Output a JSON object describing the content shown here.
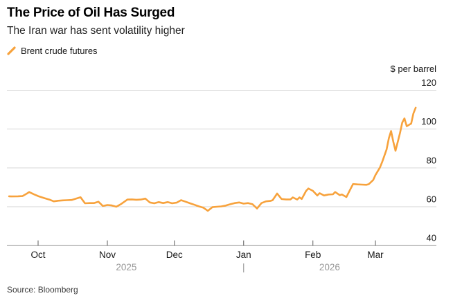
{
  "header": {
    "title": "The Price of Oil Has Surged",
    "subtitle": "The Iran war has sent volatility higher"
  },
  "legend": {
    "label": "Brent crude futures",
    "marker_icon": "orange-diagonal-line-icon"
  },
  "footer": {
    "source": "Source: Bloomberg"
  },
  "chart_data": {
    "type": "line",
    "title": "The Price of Oil Has Surged",
    "subtitle": "The Iran war has sent volatility higher",
    "series_name": "Brent crude futures",
    "unit_label": "$ per barrel",
    "line_color": "#F7A23C",
    "grid": "horizontal",
    "legend_position": "top-left",
    "ylim": [
      40,
      120
    ],
    "yticks": [
      40,
      60,
      80,
      100,
      120
    ],
    "x_axis": {
      "ticks": [
        {
          "label": "Oct",
          "date": "2025-10-01"
        },
        {
          "label": "Nov",
          "date": "2025-11-01"
        },
        {
          "label": "Dec",
          "date": "2025-12-01"
        },
        {
          "label": "Jan",
          "date": "2026-01-01"
        },
        {
          "label": "Feb",
          "date": "2026-02-01"
        },
        {
          "label": "Mar",
          "date": "2026-03-01"
        }
      ],
      "years": [
        {
          "label": "2025",
          "start": "2025-09-18",
          "end": "2026-01-01"
        },
        {
          "label": "2026",
          "start": "2026-01-01",
          "end": "2026-03-19"
        }
      ]
    },
    "x": [
      "2025-09-18",
      "2025-09-19",
      "2025-09-22",
      "2025-09-24",
      "2025-09-26",
      "2025-09-27",
      "2025-09-29",
      "2025-09-30",
      "2025-10-01",
      "2025-10-04",
      "2025-10-06",
      "2025-10-08",
      "2025-10-10",
      "2025-10-12",
      "2025-10-14",
      "2025-10-16",
      "2025-10-18",
      "2025-10-20",
      "2025-10-22",
      "2025-10-24",
      "2025-10-26",
      "2025-10-28",
      "2025-10-30",
      "2025-11-01",
      "2025-11-03",
      "2025-11-05",
      "2025-11-07",
      "2025-11-10",
      "2025-11-12",
      "2025-11-14",
      "2025-11-16",
      "2025-11-18",
      "2025-11-20",
      "2025-11-22",
      "2025-11-24",
      "2025-11-26",
      "2025-11-28",
      "2025-11-30",
      "2025-12-02",
      "2025-12-04",
      "2025-12-06",
      "2025-12-08",
      "2025-12-10",
      "2025-12-12",
      "2025-12-14",
      "2025-12-16",
      "2025-12-18",
      "2025-12-20",
      "2025-12-22",
      "2025-12-24",
      "2025-12-26",
      "2025-12-28",
      "2025-12-30",
      "2026-01-01",
      "2026-01-03",
      "2026-01-05",
      "2026-01-07",
      "2026-01-09",
      "2026-01-11",
      "2026-01-13",
      "2026-01-14",
      "2026-01-16",
      "2026-01-18",
      "2026-01-20",
      "2026-01-22",
      "2026-01-23",
      "2026-01-25",
      "2026-01-26",
      "2026-01-27",
      "2026-01-29",
      "2026-01-30",
      "2026-02-01",
      "2026-02-03",
      "2026-02-04",
      "2026-02-06",
      "2026-02-08",
      "2026-02-10",
      "2026-02-11",
      "2026-02-13",
      "2026-02-14",
      "2026-02-16",
      "2026-02-18",
      "2026-02-19",
      "2026-02-21",
      "2026-02-23",
      "2026-02-25",
      "2026-02-26",
      "2026-02-28",
      "2026-03-01",
      "2026-03-03",
      "2026-03-04",
      "2026-03-06",
      "2026-03-07",
      "2026-03-08",
      "2026-03-09",
      "2026-03-10",
      "2026-03-12",
      "2026-03-13",
      "2026-03-14",
      "2026-03-15",
      "2026-03-17",
      "2026-03-18",
      "2026-03-19"
    ],
    "values": [
      65.4,
      65.3,
      65.4,
      65.5,
      66.8,
      67.6,
      66.5,
      66.0,
      65.5,
      64.4,
      63.7,
      62.8,
      63.1,
      63.3,
      63.4,
      63.5,
      64.2,
      64.9,
      61.8,
      61.9,
      61.9,
      62.6,
      60.4,
      60.9,
      60.7,
      60.0,
      61.3,
      63.7,
      63.8,
      63.6,
      63.7,
      64.2,
      62.2,
      61.8,
      62.4,
      61.9,
      62.4,
      61.8,
      62.1,
      63.4,
      62.6,
      61.8,
      61.0,
      60.2,
      59.5,
      57.9,
      59.8,
      60.0,
      60.2,
      60.6,
      61.3,
      61.9,
      62.2,
      61.6,
      61.9,
      61.3,
      59.1,
      61.9,
      62.8,
      63.0,
      63.4,
      66.8,
      64.0,
      63.8,
      63.8,
      64.8,
      63.7,
      64.8,
      64.0,
      68.2,
      69.4,
      68.2,
      65.8,
      67.0,
      65.8,
      66.3,
      66.4,
      67.6,
      66.0,
      66.3,
      65.0,
      69.5,
      71.7,
      71.5,
      71.4,
      71.3,
      71.6,
      73.8,
      76.3,
      80.2,
      83.0,
      89.5,
      95.3,
      99.0,
      93.5,
      88.8,
      98.0,
      103.3,
      105.5,
      101.5,
      102.8,
      108.0,
      111.0
    ]
  }
}
